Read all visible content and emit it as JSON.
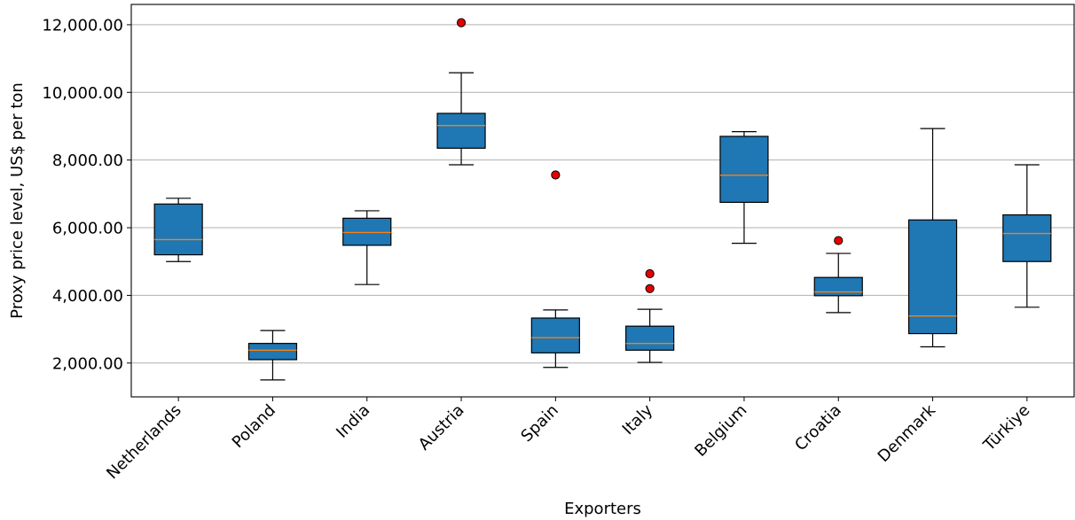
{
  "chart_data": {
    "type": "box",
    "xlabel": "Exporters",
    "ylabel": "Proxy price level, US$ per ton",
    "ylim": [
      1000,
      12600
    ],
    "yticks": [
      2000,
      4000,
      6000,
      8000,
      10000,
      12000
    ],
    "ytick_labels": [
      "2,000.00",
      "4,000.00",
      "6,000.00",
      "8,000.00",
      "10,000.00",
      "12,000.00"
    ],
    "grid": "horizontal",
    "colors": {
      "box_fill": "#1f77b4",
      "median": "#ff7f0e",
      "outlier": "#e60000"
    },
    "categories": [
      "Netherlands",
      "Poland",
      "India",
      "Austria",
      "Spain",
      "Italy",
      "Belgium",
      "Croatia",
      "Denmark",
      "Türkiye"
    ],
    "boxes": [
      {
        "whisker_low": 5000,
        "q1": 5200,
        "median": 5650,
        "q3": 6700,
        "whisker_high": 6870,
        "outliers": []
      },
      {
        "whisker_low": 1500,
        "q1": 2100,
        "median": 2380,
        "q3": 2580,
        "whisker_high": 2960,
        "outliers": []
      },
      {
        "whisker_low": 4320,
        "q1": 5480,
        "median": 5860,
        "q3": 6280,
        "whisker_high": 6500,
        "outliers": []
      },
      {
        "whisker_low": 7860,
        "q1": 8350,
        "median": 9020,
        "q3": 9380,
        "whisker_high": 10580,
        "outliers": [
          12060
        ]
      },
      {
        "whisker_low": 1870,
        "q1": 2300,
        "median": 2750,
        "q3": 3330,
        "whisker_high": 3570,
        "outliers": [
          7560
        ]
      },
      {
        "whisker_low": 2020,
        "q1": 2380,
        "median": 2580,
        "q3": 3090,
        "whisker_high": 3590,
        "outliers": [
          4200,
          4640
        ]
      },
      {
        "whisker_low": 5540,
        "q1": 6750,
        "median": 7550,
        "q3": 8700,
        "whisker_high": 8840,
        "outliers": []
      },
      {
        "whisker_low": 3490,
        "q1": 3990,
        "median": 4100,
        "q3": 4530,
        "whisker_high": 5240,
        "outliers": [
          5620
        ]
      },
      {
        "whisker_low": 2480,
        "q1": 2870,
        "median": 3390,
        "q3": 6230,
        "whisker_high": 8930,
        "outliers": []
      },
      {
        "whisker_low": 3650,
        "q1": 5000,
        "median": 5830,
        "q3": 6380,
        "whisker_high": 7860,
        "outliers": []
      }
    ]
  }
}
